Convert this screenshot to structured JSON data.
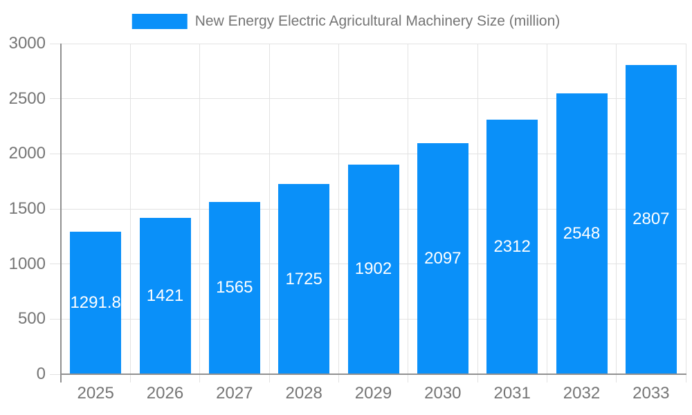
{
  "chart_data": {
    "type": "bar",
    "title": "",
    "series_name": "New Energy Electric Agricultural Machinery Size (million)",
    "categories": [
      "2025",
      "2026",
      "2027",
      "2028",
      "2029",
      "2030",
      "2031",
      "2032",
      "2033"
    ],
    "values": [
      1291.8,
      1421,
      1565,
      1725,
      1902,
      2097,
      2312,
      2548,
      2807
    ],
    "value_labels": [
      "1291.8",
      "1421",
      "1565",
      "1725",
      "1902",
      "2097",
      "2312",
      "2548",
      "2807"
    ],
    "xlabel": "",
    "ylabel": "",
    "ylim": [
      0,
      3000
    ],
    "yticks": [
      0,
      500,
      1000,
      1500,
      2000,
      2500,
      3000
    ],
    "ytick_labels": [
      "0",
      "500",
      "1000",
      "1500",
      "2000",
      "2500",
      "3000"
    ],
    "grid": true,
    "legend_position": "top-center",
    "colors": {
      "bar": "#0a90f9",
      "bar_label": "#ffffff",
      "axis_text": "#757575",
      "grid_line": "#e2e2e2",
      "axis_line": "#909090",
      "background": "#ffffff"
    }
  }
}
